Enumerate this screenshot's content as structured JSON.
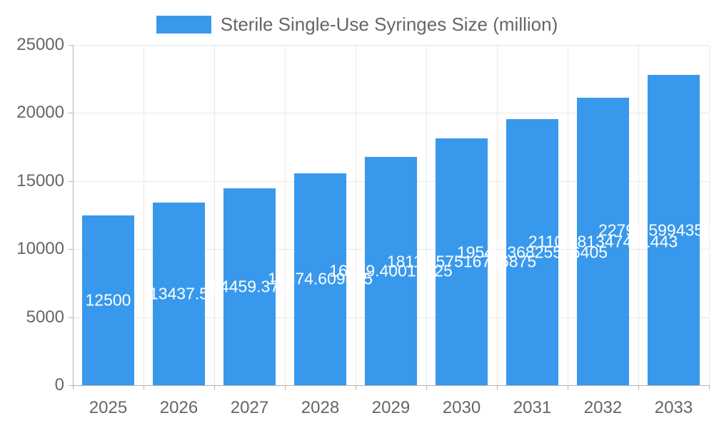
{
  "legend": {
    "label": "Sterile Single-Use Syringes Size (million)"
  },
  "chart_data": {
    "type": "bar",
    "title": "Sterile Single-Use Syringes Size (million)",
    "categories": [
      "2025",
      "2026",
      "2027",
      "2028",
      "2029",
      "2030",
      "2031",
      "2032",
      "2033"
    ],
    "values": [
      12500,
      13437.5,
      14459.375,
      15574.609375,
      16779.40015625,
      18114.57516756875,
      19545.36825556405,
      21108.81347401443,
      22792.59943595029
    ],
    "value_labels": [
      "12500",
      "13437.5",
      "14459.375",
      "15574.609375",
      "16779.40015625",
      "18114.57516756875",
      "19545.36825556405",
      "21108.81347401443",
      "22792.59943595029"
    ],
    "xlabel": "",
    "ylabel": "",
    "ylim": [
      0,
      25000
    ],
    "yticks": [
      0,
      5000,
      10000,
      15000,
      20000,
      25000
    ],
    "ytick_labels": [
      "0",
      "5000",
      "10000",
      "15000",
      "20000",
      "25000"
    ],
    "legend_position": "top-center",
    "grid": true,
    "bar_labels_position": "center-inside",
    "colors": {
      "bar": "#3899EC",
      "bar_label_text": "#FFFFFF",
      "tick_text": "#666666",
      "legend_text": "#666666",
      "gridline": "#E8E8E8",
      "axis_line": "#B3B3B3",
      "background": "#FFFFFF"
    }
  }
}
